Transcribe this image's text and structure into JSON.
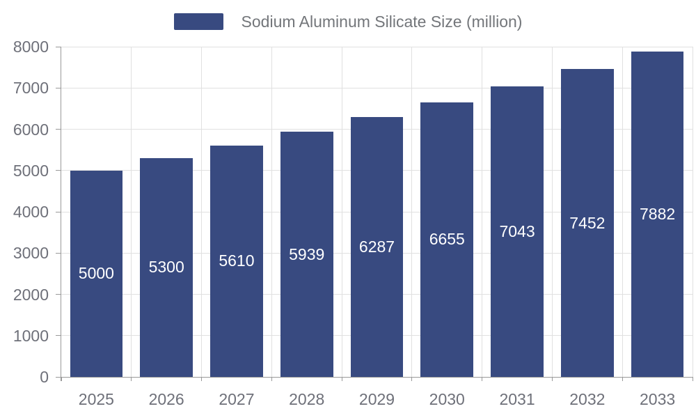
{
  "chart_data": {
    "type": "bar",
    "title": "Sodium Aluminum Silicate Size (million)",
    "series_name": "Sodium Aluminum Silicate Size (million)",
    "categories": [
      "2025",
      "2026",
      "2027",
      "2028",
      "2029",
      "2030",
      "2031",
      "2032",
      "2033"
    ],
    "values": [
      5000,
      5300,
      5610,
      5939,
      6287,
      6655,
      7043,
      7452,
      7882
    ],
    "xlabel": "",
    "ylabel": "",
    "ylim": [
      0,
      8000
    ],
    "ytick_step": 1000,
    "yticks": [
      0,
      1000,
      2000,
      3000,
      4000,
      5000,
      6000,
      7000,
      8000
    ],
    "grid": true,
    "legend_position": "top-center",
    "bar_color": "#384a80",
    "bar_label_color": "#ffffff",
    "gridline_color": "#e0e0e0",
    "axis_line_color": "#999999",
    "axis_label_color": "#6e7079",
    "legend_text_color": "#73767a"
  }
}
